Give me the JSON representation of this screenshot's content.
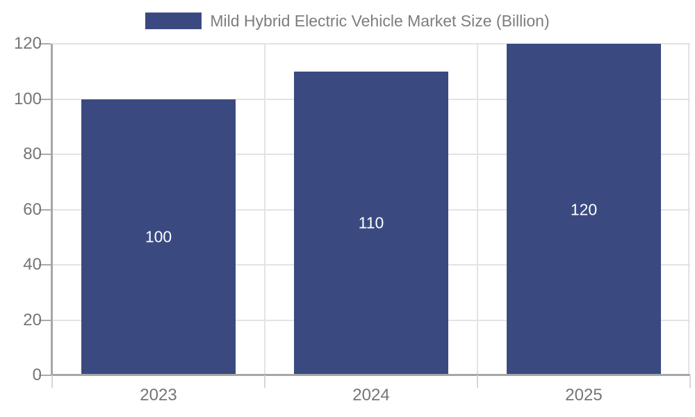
{
  "style": {
    "background": "#ffffff",
    "bar_color": "#3A4A81",
    "grid_color": "#e3e3e3",
    "axis_color": "#a6a6a6",
    "tick_color_y": "#a9a9a9",
    "tick_color_x": "#d6d6d6",
    "tick_text_color": "#757575",
    "legend_text_color": "#7d7d7d",
    "bar_label_color": "#ffffff"
  },
  "legend": {
    "label": "Mild Hybrid Electric Vehicle Market Size (Billion)"
  },
  "chart_data": {
    "type": "bar",
    "title": "Mild Hybrid Electric Vehicle Market Size (Billion)",
    "series_name": "Mild Hybrid Electric Vehicle Market Size (Billion)",
    "categories": [
      "2023",
      "2024",
      "2025"
    ],
    "values": [
      100,
      110,
      120
    ],
    "bar_labels": [
      "100",
      "110",
      "120"
    ],
    "xlabel": "",
    "ylabel": "",
    "ylim": [
      0,
      120
    ],
    "yticks": [
      0,
      20,
      40,
      60,
      80,
      100,
      120
    ],
    "grid": true,
    "legend_position": "top-center"
  }
}
